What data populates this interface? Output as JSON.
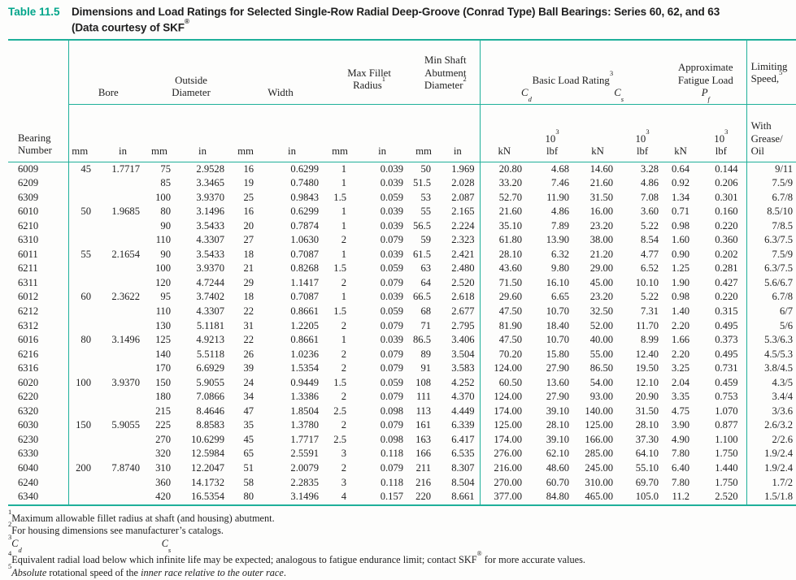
{
  "colors": {
    "accent": "#00a58a",
    "line": "#1fb09a"
  },
  "title": {
    "label": "Table 11.5",
    "line1": "Dimensions and Load Ratings for Selected Single-Row Radial Deep-Groove (Conrad Type) Ball Bearings: Series 60, 62, and 63",
    "line2": "(Data courtesy of SKF",
    "registered": "®"
  },
  "table": {
    "bearing_head": {
      "l1": "Bearing",
      "l2": "Number"
    },
    "groups": {
      "bore": "Bore",
      "od": {
        "l1": "Outside",
        "l2": "Diameter"
      },
      "width": "Width",
      "fillet": {
        "l1": "Max Fillet",
        "l2": "Radius",
        "sup": "1"
      },
      "shaft": {
        "l1": "Min Shaft",
        "l2": "Abutment",
        "l3": "Diameter",
        "sup": "2"
      },
      "blr": {
        "label": "Basic Load Rating",
        "sup": "3",
        "cd": {
          "base": "C",
          "sub": "d"
        },
        "cs": {
          "base": "C",
          "sub": "s"
        }
      },
      "fatigue": {
        "l1": "Approximate",
        "l2": "Fatigue Load",
        "symbol": {
          "base": "P",
          "sub": "f"
        }
      },
      "speed": {
        "l1": "Limiting",
        "l2": "Speed,",
        "sup": "5"
      }
    },
    "units": {
      "mm": "mm",
      "in": "in",
      "kn": "kN",
      "e3_base": "10",
      "e3_sup": "3",
      "lbf": "lbf",
      "grease": {
        "l1": "With",
        "l2": "Grease/",
        "l3": "Oil"
      }
    },
    "col_keys": [
      "bearing_number",
      "bore_mm",
      "bore_in",
      "od_mm",
      "od_in",
      "width_mm",
      "width_in",
      "fillet_mm",
      "fillet_in",
      "shaft_mm",
      "shaft_in",
      "cd_kn",
      "cd_lbf",
      "cs_kn",
      "cs_lbf",
      "pf_kn",
      "pf_lbf",
      "speed"
    ],
    "rows": [
      [
        "6009",
        "45",
        "1.7717",
        "75",
        "2.9528",
        "16",
        "0.6299",
        "1",
        "0.039",
        "50",
        "1.969",
        "20.80",
        "4.68",
        "14.60",
        "3.28",
        "0.64",
        "0.144",
        "9/11"
      ],
      [
        "6209",
        "",
        "",
        "85",
        "3.3465",
        "19",
        "0.7480",
        "1",
        "0.039",
        "51.5",
        "2.028",
        "33.20",
        "7.46",
        "21.60",
        "4.86",
        "0.92",
        "0.206",
        "7.5/9"
      ],
      [
        "6309",
        "",
        "",
        "100",
        "3.9370",
        "25",
        "0.9843",
        "1.5",
        "0.059",
        "53",
        "2.087",
        "52.70",
        "11.90",
        "31.50",
        "7.08",
        "1.34",
        "0.301",
        "6.7/8"
      ],
      [
        "6010",
        "50",
        "1.9685",
        "80",
        "3.1496",
        "16",
        "0.6299",
        "1",
        "0.039",
        "55",
        "2.165",
        "21.60",
        "4.86",
        "16.00",
        "3.60",
        "0.71",
        "0.160",
        "8.5/10"
      ],
      [
        "6210",
        "",
        "",
        "90",
        "3.5433",
        "20",
        "0.7874",
        "1",
        "0.039",
        "56.5",
        "2.224",
        "35.10",
        "7.89",
        "23.20",
        "5.22",
        "0.98",
        "0.220",
        "7/8.5"
      ],
      [
        "6310",
        "",
        "",
        "110",
        "4.3307",
        "27",
        "1.0630",
        "2",
        "0.079",
        "59",
        "2.323",
        "61.80",
        "13.90",
        "38.00",
        "8.54",
        "1.60",
        "0.360",
        "6.3/7.5"
      ],
      [
        "6011",
        "55",
        "2.1654",
        "90",
        "3.5433",
        "18",
        "0.7087",
        "1",
        "0.039",
        "61.5",
        "2.421",
        "28.10",
        "6.32",
        "21.20",
        "4.77",
        "0.90",
        "0.202",
        "7.5/9"
      ],
      [
        "6211",
        "",
        "",
        "100",
        "3.9370",
        "21",
        "0.8268",
        "1.5",
        "0.059",
        "63",
        "2.480",
        "43.60",
        "9.80",
        "29.00",
        "6.52",
        "1.25",
        "0.281",
        "6.3/7.5"
      ],
      [
        "6311",
        "",
        "",
        "120",
        "4.7244",
        "29",
        "1.1417",
        "2",
        "0.079",
        "64",
        "2.520",
        "71.50",
        "16.10",
        "45.00",
        "10.10",
        "1.90",
        "0.427",
        "5.6/6.7"
      ],
      [
        "6012",
        "60",
        "2.3622",
        "95",
        "3.7402",
        "18",
        "0.7087",
        "1",
        "0.039",
        "66.5",
        "2.618",
        "29.60",
        "6.65",
        "23.20",
        "5.22",
        "0.98",
        "0.220",
        "6.7/8"
      ],
      [
        "6212",
        "",
        "",
        "110",
        "4.3307",
        "22",
        "0.8661",
        "1.5",
        "0.059",
        "68",
        "2.677",
        "47.50",
        "10.70",
        "32.50",
        "7.31",
        "1.40",
        "0.315",
        "6/7"
      ],
      [
        "6312",
        "",
        "",
        "130",
        "5.1181",
        "31",
        "1.2205",
        "2",
        "0.079",
        "71",
        "2.795",
        "81.90",
        "18.40",
        "52.00",
        "11.70",
        "2.20",
        "0.495",
        "5/6"
      ],
      [
        "6016",
        "80",
        "3.1496",
        "125",
        "4.9213",
        "22",
        "0.8661",
        "1",
        "0.039",
        "86.5",
        "3.406",
        "47.50",
        "10.70",
        "40.00",
        "8.99",
        "1.66",
        "0.373",
        "5.3/6.3"
      ],
      [
        "6216",
        "",
        "",
        "140",
        "5.5118",
        "26",
        "1.0236",
        "2",
        "0.079",
        "89",
        "3.504",
        "70.20",
        "15.80",
        "55.00",
        "12.40",
        "2.20",
        "0.495",
        "4.5/5.3"
      ],
      [
        "6316",
        "",
        "",
        "170",
        "6.6929",
        "39",
        "1.5354",
        "2",
        "0.079",
        "91",
        "3.583",
        "124.00",
        "27.90",
        "86.50",
        "19.50",
        "3.25",
        "0.731",
        "3.8/4.5"
      ],
      [
        "6020",
        "100",
        "3.9370",
        "150",
        "5.9055",
        "24",
        "0.9449",
        "1.5",
        "0.059",
        "108",
        "4.252",
        "60.50",
        "13.60",
        "54.00",
        "12.10",
        "2.04",
        "0.459",
        "4.3/5"
      ],
      [
        "6220",
        "",
        "",
        "180",
        "7.0866",
        "34",
        "1.3386",
        "2",
        "0.079",
        "111",
        "4.370",
        "124.00",
        "27.90",
        "93.00",
        "20.90",
        "3.35",
        "0.753",
        "3.4/4"
      ],
      [
        "6320",
        "",
        "",
        "215",
        "8.4646",
        "47",
        "1.8504",
        "2.5",
        "0.098",
        "113",
        "4.449",
        "174.00",
        "39.10",
        "140.00",
        "31.50",
        "4.75",
        "1.070",
        "3/3.6"
      ],
      [
        "6030",
        "150",
        "5.9055",
        "225",
        "8.8583",
        "35",
        "1.3780",
        "2",
        "0.079",
        "161",
        "6.339",
        "125.00",
        "28.10",
        "125.00",
        "28.10",
        "3.90",
        "0.877",
        "2.6/3.2"
      ],
      [
        "6230",
        "",
        "",
        "270",
        "10.6299",
        "45",
        "1.7717",
        "2.5",
        "0.098",
        "163",
        "6.417",
        "174.00",
        "39.10",
        "166.00",
        "37.30",
        "4.90",
        "1.100",
        "2/2.6"
      ],
      [
        "6330",
        "",
        "",
        "320",
        "12.5984",
        "65",
        "2.5591",
        "3",
        "0.118",
        "166",
        "6.535",
        "276.00",
        "62.10",
        "285.00",
        "64.10",
        "7.80",
        "1.750",
        "1.9/2.4"
      ],
      [
        "6040",
        "200",
        "7.8740",
        "310",
        "12.2047",
        "51",
        "2.0079",
        "2",
        "0.079",
        "211",
        "8.307",
        "216.00",
        "48.60",
        "245.00",
        "55.10",
        "6.40",
        "1.440",
        "1.9/2.4"
      ],
      [
        "6240",
        "",
        "",
        "360",
        "14.1732",
        "58",
        "2.2835",
        "3",
        "0.118",
        "216",
        "8.504",
        "270.00",
        "60.70",
        "310.00",
        "69.70",
        "7.80",
        "1.750",
        "1.7/2"
      ],
      [
        "6340",
        "",
        "",
        "420",
        "16.5354",
        "80",
        "3.1496",
        "4",
        "0.157",
        "220",
        "8.661",
        "377.00",
        "84.80",
        "465.00",
        "105.0",
        "11.2",
        "2.520",
        "1.5/1.8"
      ]
    ],
    "footnotes": {
      "fn1": {
        "mark": "1",
        "text": "Maximum allowable fillet radius at shaft (and housing) abutment."
      },
      "fn2": {
        "mark": "2",
        "text": "For housing dimensions see manufacturer’s catalogs."
      },
      "fn3": {
        "mark": "3",
        "cd_base": "C",
        "cd_sub": "d",
        "cs_base": "C",
        "cs_sub": "s"
      },
      "fn4": {
        "mark": "4",
        "text_a": "Equivalent radial load below which infinite life may be expected; analogous to fatigue endurance limit; contact SKF",
        "registered": "®",
        "text_b": " for more accurate values."
      },
      "fn5": {
        "mark": "5",
        "italic_a": "Absolute",
        "text_a": " rotational speed of the ",
        "italic_b": "inner race relative to the outer race",
        "text_b": "."
      }
    }
  }
}
